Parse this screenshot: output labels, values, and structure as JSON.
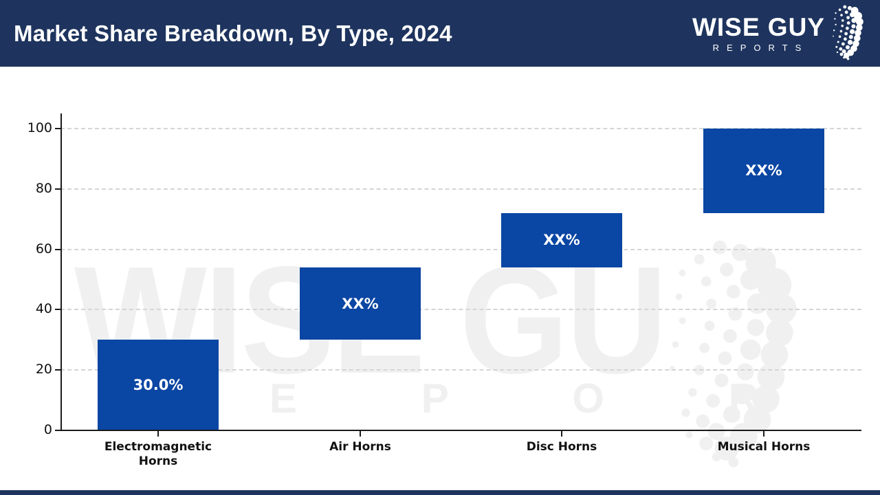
{
  "header": {
    "title": "Market Share Breakdown, By Type, 2024",
    "logo_line1": "WISE GUY",
    "logo_line2": "REPORTS"
  },
  "watermark": {
    "text": "WISE GU",
    "subtext": "R E P O R T S"
  },
  "colors": {
    "header_bg": "#1e345e",
    "bar": "#0a46a3",
    "gridline": "#d5d5d5",
    "watermark": "#f0f0f1"
  },
  "chart_data": {
    "type": "bar",
    "subtype": "waterfall",
    "title": "Market Share Breakdown, By Type, 2024",
    "categories": [
      "Electromagnetic Horns",
      "Air Horns",
      "Disc Horns",
      "Musical Horns"
    ],
    "series": [
      {
        "name": "Market Share",
        "segments": [
          {
            "category": "Electromagnetic Horns",
            "start": 0,
            "end": 30,
            "label": "30.0%"
          },
          {
            "category": "Air Horns",
            "start": 30,
            "end": 54,
            "label": "XX%"
          },
          {
            "category": "Disc Horns",
            "start": 54,
            "end": 72,
            "label": "XX%"
          },
          {
            "category": "Musical Horns",
            "start": 72,
            "end": 100,
            "label": "XX%"
          }
        ]
      }
    ],
    "xlabel": "",
    "ylabel": "",
    "ylim": [
      0,
      105
    ],
    "yticks": [
      "0",
      "20",
      "40",
      "60",
      "80",
      "100"
    ],
    "grid": "horizontal-dashed",
    "legend": "none"
  }
}
